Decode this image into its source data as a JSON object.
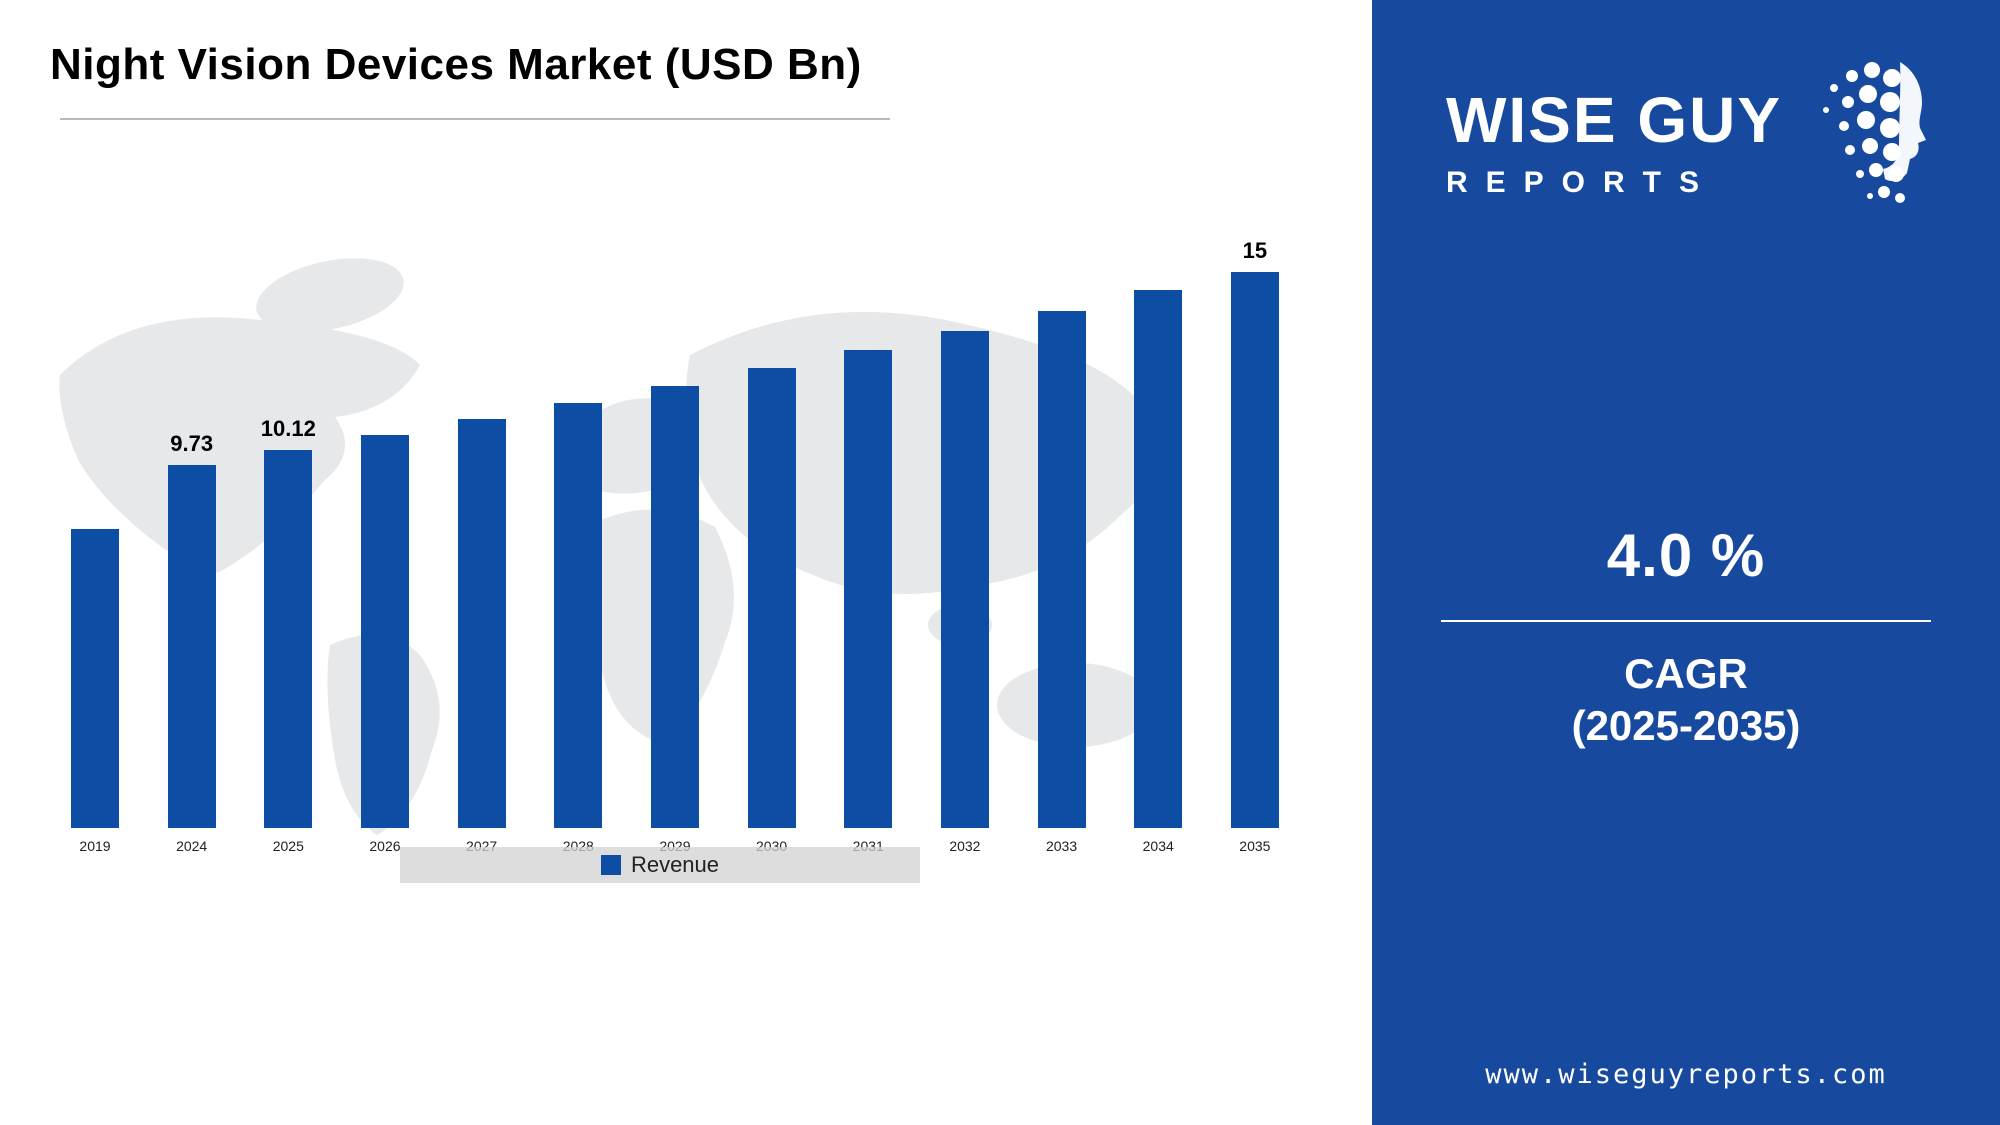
{
  "header": {
    "title": "Night Vision Devices Market (USD Bn)"
  },
  "chart_data": {
    "type": "bar",
    "title": "Night Vision Devices Market (USD Bn)",
    "series_name": "Revenue",
    "categories": [
      "2019",
      "2024",
      "2025",
      "2026",
      "2027",
      "2028",
      "2029",
      "2030",
      "2031",
      "2032",
      "2033",
      "2034",
      "2035"
    ],
    "values": [
      8.0,
      9.73,
      10.12,
      10.52,
      10.95,
      11.38,
      11.84,
      12.31,
      12.8,
      13.32,
      13.85,
      14.4,
      15
    ],
    "point_labels": [
      "",
      "9.73",
      "10.12",
      "",
      "",
      "",
      "",
      "",
      "",
      "",
      "",
      "",
      "15"
    ],
    "ylim": [
      0,
      15
    ],
    "grid": false,
    "legend_position": "bottom",
    "bar_color": "#0d4da3"
  },
  "legend": {
    "label": "Revenue"
  },
  "panel": {
    "logo_line1": "WISE GUY",
    "logo_line2": "REPORTS",
    "cagr_value": "4.0 %",
    "cagr_line1": "CAGR",
    "cagr_line2": "(2025-2035)",
    "website": "www.wiseguyreports.com"
  },
  "colors": {
    "bar": "#0d4da3",
    "panel_background": "#174a9f",
    "map_fill": "#e6e8ea",
    "legend_background": "#d2d2d2"
  }
}
